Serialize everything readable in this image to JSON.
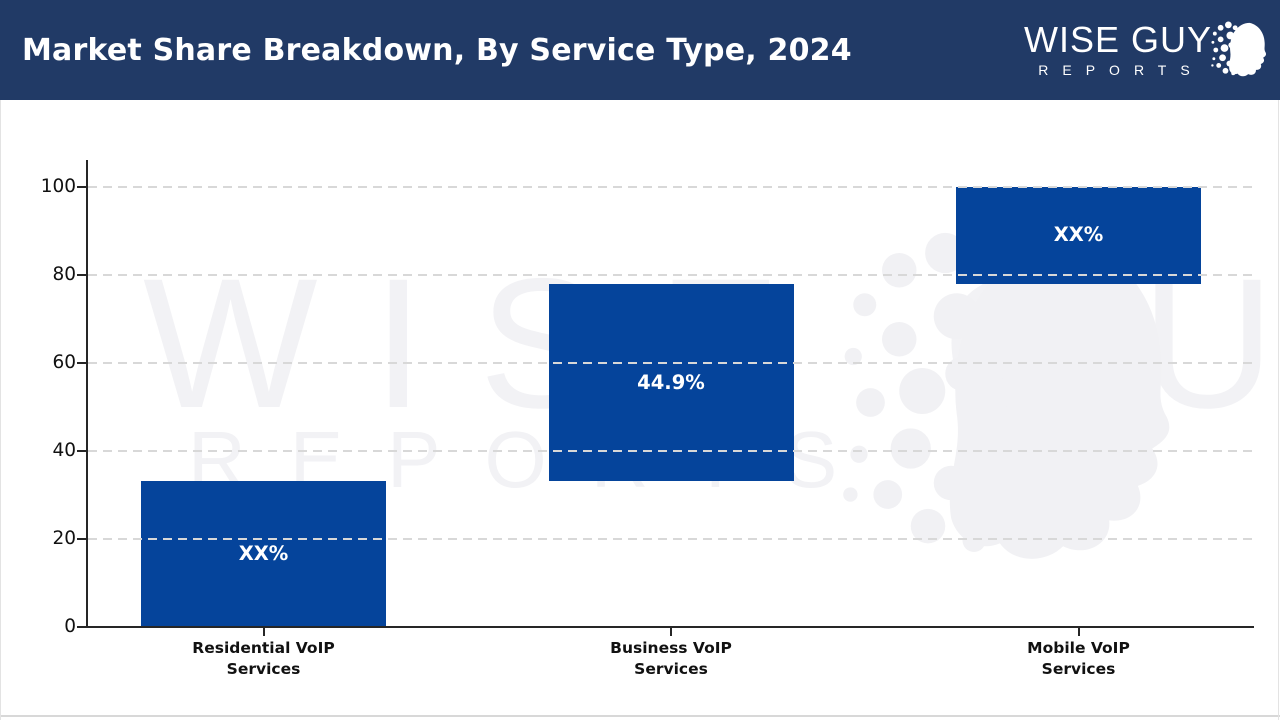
{
  "header": {
    "title": "Market Share Breakdown, By Service Type, 2024",
    "logo": {
      "line1": "WISE GUY",
      "line2": "REPORTS"
    }
  },
  "watermark": {
    "line1": "WISE GUY",
    "line2": "REPORTS"
  },
  "chart_data": {
    "type": "bar",
    "subtype": "floating-segment-bars",
    "title": "Market Share Breakdown, By Service Type, 2024",
    "categories": [
      [
        "Residential VoIP",
        "Services"
      ],
      [
        "Business VoIP",
        "Services"
      ],
      [
        "Mobile VoIP",
        "Services"
      ]
    ],
    "bars": [
      {
        "category": "Residential VoIP Services",
        "from": 0,
        "to": 33.1,
        "label": "XX%"
      },
      {
        "category": "Business VoIP Services",
        "from": 33.1,
        "to": 78.0,
        "label": "44.9%"
      },
      {
        "category": "Mobile VoIP Services",
        "from": 78.0,
        "to": 100,
        "label": "XX%"
      }
    ],
    "xlabel": "",
    "ylabel": "",
    "yticks": [
      0,
      20,
      40,
      60,
      80,
      100
    ],
    "ylim": [
      0,
      106
    ],
    "grid": "horizontal-dashed",
    "legend": "none",
    "colors": {
      "bar": "#05449b",
      "grid": "#d8d8d8",
      "axis": "#262626",
      "label": "#ffffff",
      "header_bg": "#213a66",
      "watermark": "#f1f1f4"
    }
  }
}
